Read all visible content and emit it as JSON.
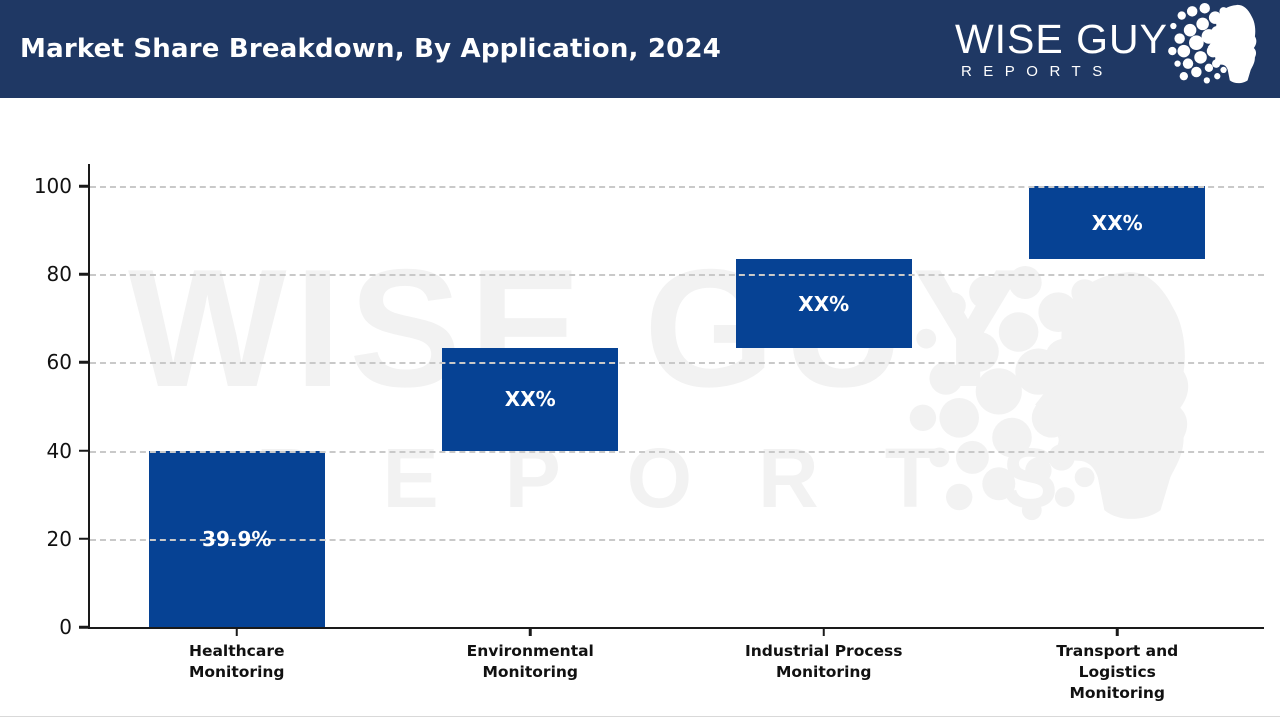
{
  "header": {
    "title": "Market Share Breakdown, By Application, 2024",
    "logo": {
      "primary": "WISE GUY",
      "secondary": "REPORTS"
    }
  },
  "watermark": {
    "primary": "WISE GUY",
    "secondary": "REPORTS"
  },
  "chart_data": {
    "type": "bar",
    "subtype": "floating-segment-waterfall",
    "title": "Market Share Breakdown, By Application, 2024",
    "categories": [
      "Healthcare Monitoring",
      "Environmental Monitoring",
      "Industrial Process Monitoring",
      "Transport and Logistics Monitoring"
    ],
    "segments": [
      {
        "category": "Healthcare Monitoring",
        "start": 0,
        "end": 39.9,
        "label": "39.9%"
      },
      {
        "category": "Environmental Monitoring",
        "start": 39.9,
        "end": 63.3,
        "label": "XX%"
      },
      {
        "category": "Industrial Process Monitoring",
        "start": 63.3,
        "end": 83.4,
        "label": "XX%"
      },
      {
        "category": "Transport and Logistics Monitoring",
        "start": 83.4,
        "end": 100,
        "label": "XX%"
      }
    ],
    "ylabel": "",
    "xlabel": "",
    "yticks": [
      0,
      20,
      40,
      60,
      80,
      100
    ],
    "ylim": [
      0,
      105
    ],
    "grid": true,
    "grid_style": "dashed",
    "legend": false,
    "bar_color": "#064294",
    "grid_color": "#c9c9c9",
    "axis_color": "#1a1a1a",
    "header_color": "#1f3864",
    "bar_label_color": "#ffffff"
  }
}
